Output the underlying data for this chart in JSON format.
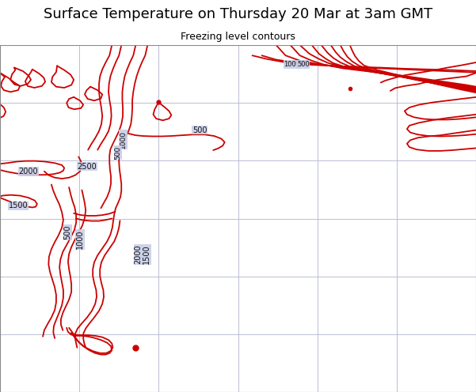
{
  "title": "Surface Temperature on Thursday 20 Mar at 3am GMT",
  "subtitle": "Freezing level contours",
  "title_fontsize": 13,
  "subtitle_fontsize": 9,
  "map_bg": "#c8cfe8",
  "title_bg": "#ffffff",
  "contour_color": "#cc0000",
  "label_color": "#111111",
  "grid_color": "#b0b5cc",
  "fig_width": 6.01,
  "fig_height": 4.96,
  "dpi": 100,
  "contour_lw": 1.3
}
